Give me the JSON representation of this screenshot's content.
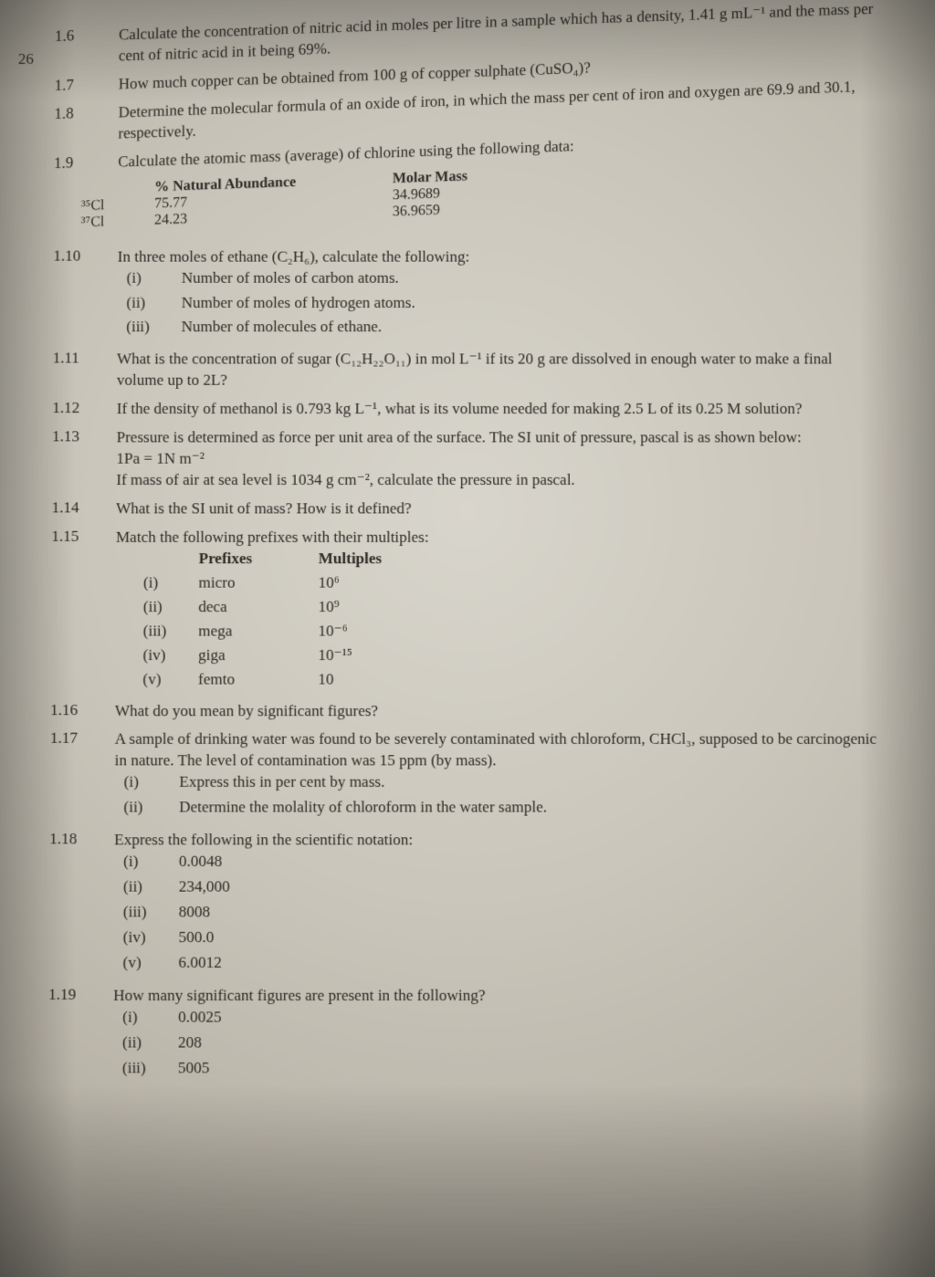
{
  "page_number": "26",
  "text_color": "#2d2b26",
  "bg_colors": [
    "#d8d5cc",
    "#c9c5ba",
    "#bab5a9",
    "#a8a397",
    "#8f8a7d"
  ],
  "questions": {
    "q16": {
      "num": "1.6",
      "text": "Calculate the concentration of nitric acid in moles per litre in a sample which has a density, 1.41 g mL⁻¹ and the mass per cent of nitric acid in it being 69%."
    },
    "q17": {
      "num": "1.7",
      "text": "How much copper can be obtained from 100 g of copper sulphate (CuSO₄)?"
    },
    "q18": {
      "num": "1.8",
      "text": "Determine the molecular formula of an oxide of iron, in which the mass per cent of iron and oxygen are 69.9 and 30.1, respectively."
    },
    "q19": {
      "num": "1.9",
      "text": "Calculate the atomic mass (average) of chlorine using the following data:"
    },
    "table19": {
      "h1": "",
      "h2": "% Natural Abundance",
      "h3": "Molar Mass",
      "r1c1": "³⁵Cl",
      "r1c2": "75.77",
      "r1c3": "34.9689",
      "r2c1": "³⁷Cl",
      "r2c2": "24.23",
      "r2c3": "36.9659"
    },
    "q110": {
      "num": "1.10",
      "text": "In three moles of ethane (C₂H₆), calculate the following:",
      "i": "Number of moles of carbon atoms.",
      "ii": "Number of moles of hydrogen atoms.",
      "iii": "Number of molecules of ethane."
    },
    "q111": {
      "num": "1.11",
      "text": "What is the concentration of sugar (C₁₂H₂₂O₁₁) in mol L⁻¹ if its 20 g are dissolved in enough water to make a final volume up to 2L?"
    },
    "q112": {
      "num": "1.12",
      "text": "If the density of methanol is 0.793 kg L⁻¹, what is its volume needed for making 2.5 L of its 0.25 M solution?"
    },
    "q113": {
      "num": "1.13",
      "text": "Pressure is determined as force per unit area of the surface. The SI unit of pressure, pascal is as shown below:",
      "eq": "1Pa = 1N m⁻²",
      "tail": "If mass of air at sea level is 1034 g cm⁻², calculate the pressure in pascal."
    },
    "q114": {
      "num": "1.14",
      "text": "What is the SI unit of mass? How is it defined?"
    },
    "q115": {
      "num": "1.15",
      "text": "Match the following prefixes with their multiples:",
      "h1": "Prefixes",
      "h2": "Multiples",
      "rows": [
        {
          "l": "(i)",
          "m": "micro",
          "r": "10⁶"
        },
        {
          "l": "(ii)",
          "m": "deca",
          "r": "10⁹"
        },
        {
          "l": "(iii)",
          "m": "mega",
          "r": "10⁻⁶"
        },
        {
          "l": "(iv)",
          "m": "giga",
          "r": "10⁻¹⁵"
        },
        {
          "l": "(v)",
          "m": "femto",
          "r": "10"
        }
      ]
    },
    "q116": {
      "num": "1.16",
      "text": "What do you mean by significant figures?"
    },
    "q117": {
      "num": "1.17",
      "text": "A sample of drinking water was found to be severely contaminated with chloroform, CHCl₃, supposed to be carcinogenic in nature. The level of contamination was 15 ppm (by mass).",
      "i": "Express this in per cent by mass.",
      "ii": "Determine the molality of chloroform in the water sample."
    },
    "q118": {
      "num": "1.18",
      "text": "Express the following in the scientific notation:",
      "i": "0.0048",
      "ii": "234,000",
      "iii": "8008",
      "iv": "500.0",
      "v": "6.0012"
    },
    "q119": {
      "num": "1.19",
      "text": "How many significant figures are present in the following?",
      "i": "0.0025",
      "ii": "208",
      "iii": "5005"
    }
  }
}
